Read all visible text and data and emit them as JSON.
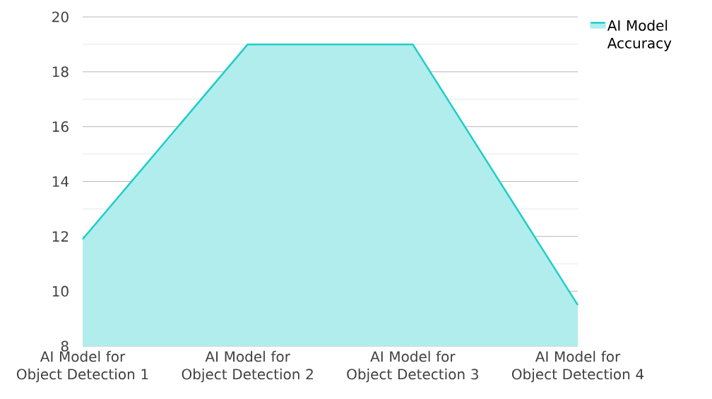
{
  "chart_data": {
    "type": "area",
    "categories": [
      "AI Model for Object Detection 1",
      "AI Model for Object Detection 2",
      "AI Model for Object Detection 3",
      "AI Model for Object Detection 4"
    ],
    "series": [
      {
        "name": "AI Model Accuracy",
        "color": "#1dcdc9",
        "values": [
          11.9,
          19,
          19,
          9.5
        ]
      }
    ],
    "ylim": [
      8,
      20
    ],
    "yticks": [
      8,
      10,
      12,
      14,
      16,
      18,
      20
    ],
    "grid": "y",
    "legend": "top right"
  }
}
